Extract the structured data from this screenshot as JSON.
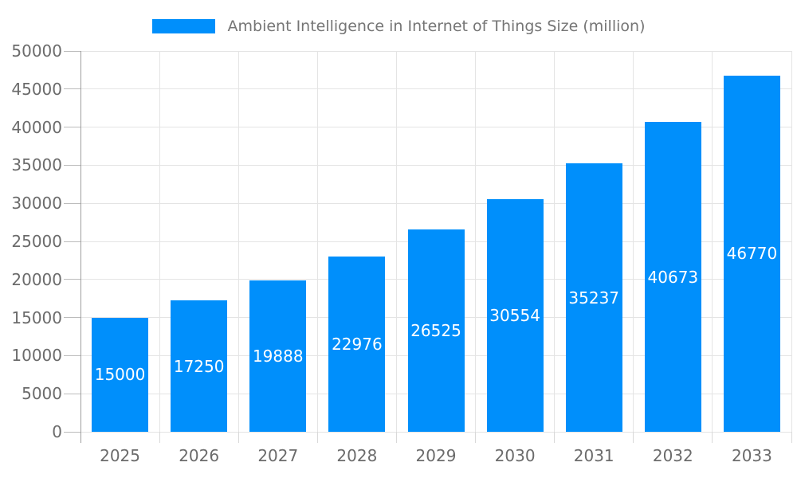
{
  "legend": {
    "label": "Ambient Intelligence in Internet of Things Size (million)",
    "swatch_color": "#008FFB"
  },
  "chart_data": {
    "type": "bar",
    "title": "Ambient Intelligence in Internet of Things Size (million)",
    "categories": [
      "2025",
      "2026",
      "2027",
      "2028",
      "2029",
      "2030",
      "2031",
      "2032",
      "2033"
    ],
    "series": [
      {
        "name": "Ambient Intelligence in Internet of Things Size (million)",
        "values": [
          15000,
          17250,
          19888,
          22976,
          26525,
          30554,
          35237,
          40673,
          46770
        ]
      }
    ],
    "xlabel": "",
    "ylabel": "",
    "ylim": [
      0,
      50000
    ],
    "ytick_step": 5000,
    "grid": true,
    "legend_position": "top",
    "colors": {
      "bar": "#008FFB",
      "bar_label_text": "#ffffff",
      "axis_text": "#6b6b6b",
      "legend_text": "#757575",
      "gridline": "#e4e4e4",
      "axis_line": "#9e9e9e"
    }
  }
}
